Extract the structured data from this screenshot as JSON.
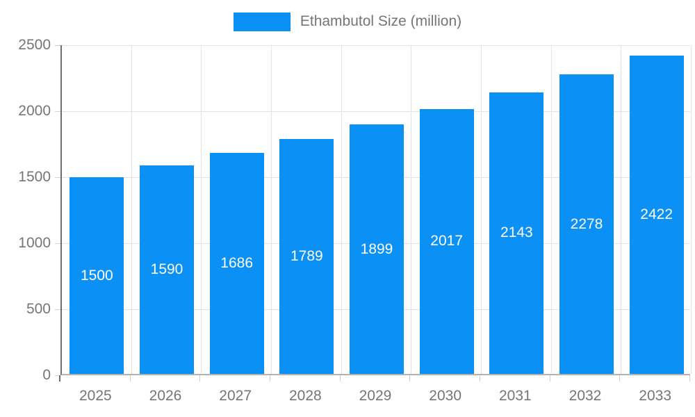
{
  "chart_data": {
    "type": "bar",
    "legend_label": "Ethambutol Size (million)",
    "categories": [
      "2025",
      "2026",
      "2027",
      "2028",
      "2029",
      "2030",
      "2031",
      "2032",
      "2033"
    ],
    "values": [
      1500,
      1590,
      1686,
      1789,
      1899,
      2017,
      2143,
      2278,
      2422
    ],
    "ylim": [
      0,
      2500
    ],
    "yticks": [
      0,
      500,
      1000,
      1500,
      2000,
      2500
    ],
    "grid": "on",
    "legend_position": "top-center",
    "bar_value_labels": "inside-center",
    "colors": {
      "bar": "#0b91f5",
      "bar_label_text": "#ffffff",
      "axis_line": "#6e6e6e",
      "baseline": "#b3b3b3",
      "gridline": "#e3e3e3",
      "tick_text": "#757575",
      "legend_text": "#757575",
      "background": "#ffffff"
    }
  }
}
